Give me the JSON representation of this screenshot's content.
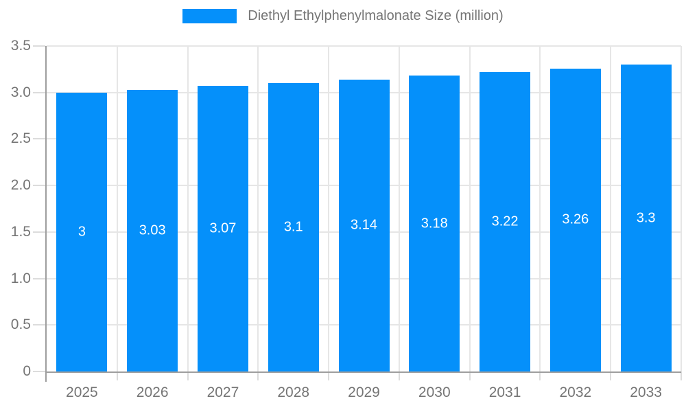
{
  "colors": {
    "bar": "#0590fa",
    "axis": "#9e9e9e",
    "grid": "#e6e6e6",
    "tick": "#dcdcdc",
    "text_muted": "#757575",
    "value_label": "#ffffff"
  },
  "legend": {
    "label": "Diethyl Ethylphenylmalonate Size (million)"
  },
  "chart_data": {
    "type": "bar",
    "title": "Diethyl Ethylphenylmalonate Size (million)",
    "categories": [
      "2025",
      "2026",
      "2027",
      "2028",
      "2029",
      "2030",
      "2031",
      "2032",
      "2033"
    ],
    "values": [
      3,
      3.03,
      3.07,
      3.1,
      3.14,
      3.18,
      3.22,
      3.26,
      3.3
    ],
    "value_labels": [
      "3",
      "3.03",
      "3.07",
      "3.1",
      "3.14",
      "3.18",
      "3.22",
      "3.26",
      "3.3"
    ],
    "xlabel": "",
    "ylabel": "",
    "ylim": [
      0,
      3.5
    ],
    "ytick_step": 0.5,
    "ytick_labels": [
      "3.5",
      "3.0",
      "2.5",
      "2.0",
      "1.5",
      "1.0",
      "0.5",
      "0"
    ],
    "grid": true,
    "legend_position": "top-center",
    "series": [
      {
        "name": "Diethyl Ethylphenylmalonate Size (million)",
        "values": [
          3,
          3.03,
          3.07,
          3.1,
          3.14,
          3.18,
          3.22,
          3.26,
          3.3
        ]
      }
    ]
  }
}
